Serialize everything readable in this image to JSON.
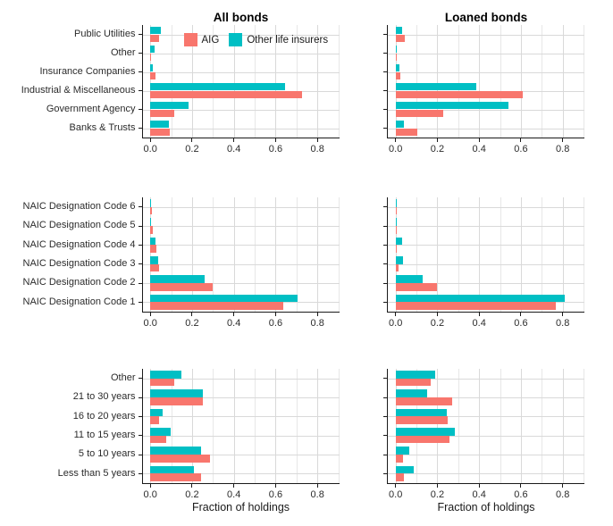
{
  "figure": {
    "background": "#ffffff",
    "grid_major_color": "#d9d9d9",
    "grid_minor_color": "#e7e7e7",
    "axis_color": "#1a1a1a"
  },
  "legend": {
    "items": [
      {
        "label": "AIG",
        "color": "#F8766D"
      },
      {
        "label": "Other life insurers",
        "color": "#00BFC4"
      }
    ]
  },
  "chart_data": [
    {
      "id": "all-bonds-by-type",
      "type": "bar",
      "orientation": "horizontal",
      "title": "All bonds",
      "show_legend": true,
      "show_category_labels": true,
      "categories_top_to_bottom": [
        "Public Utilities",
        "Other",
        "Insurance Companies",
        "Industrial & Miscellaneous",
        "Government Agency",
        "Banks & Trusts"
      ],
      "series": [
        {
          "name": "AIG",
          "color": "#F8766D",
          "values": [
            0.04,
            0.005,
            0.025,
            0.725,
            0.115,
            0.093
          ]
        },
        {
          "name": "Other life insurers",
          "color": "#00BFC4",
          "values": [
            0.051,
            0.021,
            0.013,
            0.645,
            0.185,
            0.088
          ]
        }
      ],
      "xlim": [
        0,
        0.9
      ],
      "xticks": [
        0,
        0.2,
        0.4,
        0.6,
        0.8
      ],
      "xtick_labels": [
        "0.0",
        "0.2",
        "0.4",
        "0.6",
        "0.8"
      ],
      "xlabel": ""
    },
    {
      "id": "loaned-bonds-by-type",
      "type": "bar",
      "orientation": "horizontal",
      "title": "Loaned bonds",
      "show_legend": false,
      "show_category_labels": false,
      "categories_top_to_bottom": [
        "Public Utilities",
        "Other",
        "Insurance Companies",
        "Industrial & Miscellaneous",
        "Government Agency",
        "Banks & Trusts"
      ],
      "series": [
        {
          "name": "AIG",
          "color": "#F8766D",
          "values": [
            0.046,
            0.003,
            0.024,
            0.61,
            0.23,
            0.105
          ]
        },
        {
          "name": "Other life insurers",
          "color": "#00BFC4",
          "values": [
            0.031,
            0.002,
            0.017,
            0.385,
            0.54,
            0.038
          ]
        }
      ],
      "xlim": [
        0,
        0.9
      ],
      "xticks": [
        0,
        0.2,
        0.4,
        0.6,
        0.8
      ],
      "xtick_labels": [
        "0.0",
        "0.2",
        "0.4",
        "0.6",
        "0.8"
      ],
      "xlabel": ""
    },
    {
      "id": "all-bonds-by-naic",
      "type": "bar",
      "orientation": "horizontal",
      "title": "",
      "show_legend": false,
      "show_category_labels": true,
      "categories_top_to_bottom": [
        "NAIC Designation Code 6",
        "NAIC Designation Code 5",
        "NAIC Designation Code 4",
        "NAIC Designation Code 3",
        "NAIC Designation Code 2",
        "NAIC Designation Code 1"
      ],
      "series": [
        {
          "name": "AIG",
          "color": "#F8766D",
          "values": [
            0.006,
            0.01,
            0.029,
            0.042,
            0.3,
            0.635
          ]
        },
        {
          "name": "Other life insurers",
          "color": "#00BFC4",
          "values": [
            0.004,
            0.003,
            0.026,
            0.039,
            0.26,
            0.705
          ]
        }
      ],
      "xlim": [
        0,
        0.9
      ],
      "xticks": [
        0,
        0.2,
        0.4,
        0.6,
        0.8
      ],
      "xtick_labels": [
        "0.0",
        "0.2",
        "0.4",
        "0.6",
        "0.8"
      ],
      "xlabel": ""
    },
    {
      "id": "loaned-bonds-by-naic",
      "type": "bar",
      "orientation": "horizontal",
      "title": "",
      "show_legend": false,
      "show_category_labels": false,
      "categories_top_to_bottom": [
        "NAIC Designation Code 6",
        "NAIC Designation Code 5",
        "NAIC Designation Code 4",
        "NAIC Designation Code 3",
        "NAIC Designation Code 2",
        "NAIC Designation Code 1"
      ],
      "series": [
        {
          "name": "AIG",
          "color": "#F8766D",
          "values": [
            0.002,
            0.002,
            0.007,
            0.014,
            0.2,
            0.765
          ]
        },
        {
          "name": "Other life insurers",
          "color": "#00BFC4",
          "values": [
            0.003,
            0.004,
            0.03,
            0.036,
            0.13,
            0.81
          ]
        }
      ],
      "xlim": [
        0,
        0.9
      ],
      "xticks": [
        0,
        0.2,
        0.4,
        0.6,
        0.8
      ],
      "xtick_labels": [
        "0.0",
        "0.2",
        "0.4",
        "0.6",
        "0.8"
      ],
      "xlabel": ""
    },
    {
      "id": "all-bonds-by-maturity",
      "type": "bar",
      "orientation": "horizontal",
      "title": "",
      "show_legend": false,
      "show_category_labels": true,
      "categories_top_to_bottom": [
        "Other",
        "21 to 30 years",
        "16 to 20 years",
        "11 to 15 years",
        "5 to 10 years",
        "Less than 5 years"
      ],
      "series": [
        {
          "name": "AIG",
          "color": "#F8766D",
          "values": [
            0.115,
            0.25,
            0.043,
            0.076,
            0.285,
            0.245
          ]
        },
        {
          "name": "Other life insurers",
          "color": "#00BFC4",
          "values": [
            0.148,
            0.25,
            0.057,
            0.096,
            0.245,
            0.21
          ]
        }
      ],
      "xlim": [
        0,
        0.9
      ],
      "xticks": [
        0,
        0.2,
        0.4,
        0.6,
        0.8
      ],
      "xtick_labels": [
        "0.0",
        "0.2",
        "0.4",
        "0.6",
        "0.8"
      ],
      "xlabel": "Fraction of holdings"
    },
    {
      "id": "loaned-bonds-by-maturity",
      "type": "bar",
      "orientation": "horizontal",
      "title": "",
      "show_legend": false,
      "show_category_labels": false,
      "categories_top_to_bottom": [
        "Other",
        "21 to 30 years",
        "16 to 20 years",
        "11 to 15 years",
        "5 to 10 years",
        "Less than 5 years"
      ],
      "series": [
        {
          "name": "AIG",
          "color": "#F8766D",
          "values": [
            0.17,
            0.27,
            0.25,
            0.26,
            0.035,
            0.04
          ]
        },
        {
          "name": "Other life insurers",
          "color": "#00BFC4",
          "values": [
            0.19,
            0.15,
            0.245,
            0.283,
            0.065,
            0.086
          ]
        }
      ],
      "xlim": [
        0,
        0.9
      ],
      "xticks": [
        0,
        0.2,
        0.4,
        0.6,
        0.8
      ],
      "xtick_labels": [
        "0.0",
        "0.2",
        "0.4",
        "0.6",
        "0.8"
      ],
      "xlabel": "Fraction of holdings"
    }
  ]
}
